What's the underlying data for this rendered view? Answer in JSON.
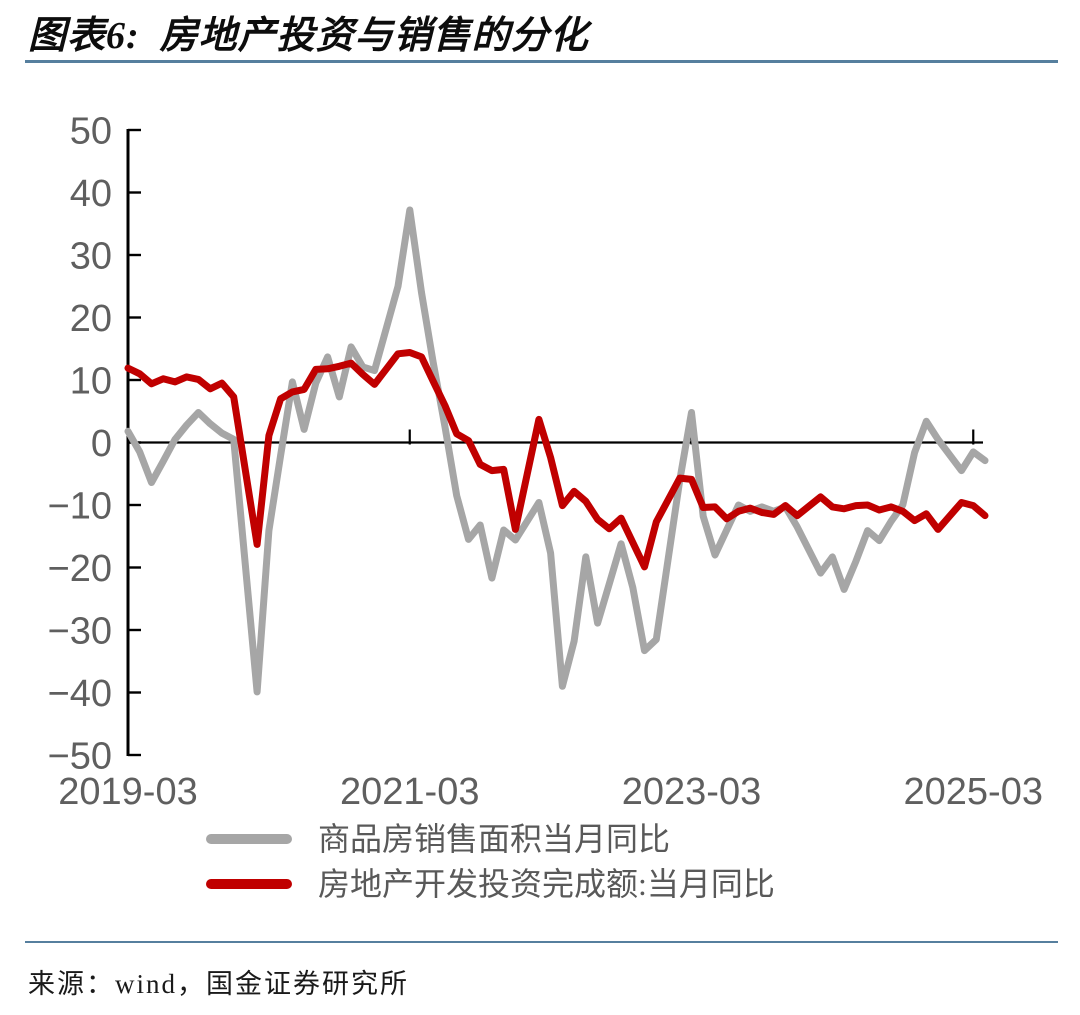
{
  "header": {
    "figure_tag": "图表6:",
    "title": "房地产投资与销售的分化"
  },
  "footer": {
    "source": "来源：wind，国金证券研究所"
  },
  "style": {
    "rule_color": "#567f9e",
    "axis_color": "#000000",
    "tick_label_color": "#5f5f5f",
    "legend_text_color": "#595959"
  },
  "chart_data": {
    "type": "line",
    "title": "房地产投资与销售的分化",
    "xlabel": "",
    "ylabel": "",
    "ylim": [
      -50,
      50
    ],
    "y_ticks": [
      50,
      40,
      30,
      20,
      10,
      0,
      -10,
      -20,
      -30,
      -40,
      -50
    ],
    "x_ticks": [
      "2019-03",
      "2021-03",
      "2023-03",
      "2025-03"
    ],
    "grid": false,
    "zero_axis_line": true,
    "legend_position": "bottom-left",
    "x": [
      "2019-03",
      "2019-04",
      "2019-05",
      "2019-06",
      "2019-07",
      "2019-08",
      "2019-09",
      "2019-10",
      "2019-11",
      "2019-12",
      "2020-02",
      "2020-03",
      "2020-04",
      "2020-05",
      "2020-06",
      "2020-07",
      "2020-08",
      "2020-09",
      "2020-10",
      "2020-11",
      "2020-12",
      "2021-02",
      "2021-03",
      "2021-04",
      "2021-05",
      "2021-06",
      "2021-07",
      "2021-08",
      "2021-09",
      "2021-10",
      "2021-11",
      "2021-12",
      "2022-02",
      "2022-03",
      "2022-04",
      "2022-05",
      "2022-06",
      "2022-07",
      "2022-08",
      "2022-09",
      "2022-10",
      "2022-11",
      "2022-12",
      "2023-02",
      "2023-03",
      "2023-04",
      "2023-05",
      "2023-06",
      "2023-07",
      "2023-08",
      "2023-09",
      "2023-10",
      "2023-11",
      "2023-12",
      "2024-02",
      "2024-03",
      "2024-04",
      "2024-05",
      "2024-06",
      "2024-07",
      "2024-08",
      "2024-09",
      "2024-10",
      "2024-11",
      "2024-12",
      "2025-02",
      "2025-03",
      "2025-04"
    ],
    "series": [
      {
        "name": "商品房销售面积当月同比",
        "color": "#a6a6a6",
        "values": [
          1.8,
          -1.5,
          -6.4,
          -3.0,
          0.5,
          2.8,
          4.8,
          3.0,
          1.5,
          0.5,
          -39.9,
          -14.1,
          -2.1,
          9.7,
          2.1,
          9.5,
          13.7,
          7.3,
          15.3,
          12.1,
          11.5,
          25.0,
          37.2,
          24.0,
          12.8,
          2.5,
          -8.5,
          -15.5,
          -13.2,
          -21.7,
          -14.0,
          -15.6,
          -9.6,
          -17.7,
          -39.0,
          -31.8,
          -18.3,
          -28.9,
          -22.6,
          -16.2,
          -23.2,
          -33.3,
          -31.5,
          -6.0,
          4.8,
          -11.8,
          -18.0,
          -14.0,
          -10.0,
          -11.0,
          -10.3,
          -11.0,
          -10.3,
          -13.5,
          -20.9,
          -18.3,
          -23.5,
          -19.0,
          -14.1,
          -15.7,
          -12.6,
          -10.0,
          -1.6,
          3.4,
          0.5,
          -4.5,
          -1.5,
          -2.9
        ]
      },
      {
        "name": "房地产开发投资完成额:当月同比",
        "color": "#c00000",
        "values": [
          11.9,
          11.0,
          9.4,
          10.2,
          9.7,
          10.5,
          10.1,
          8.6,
          9.5,
          7.3,
          -16.3,
          1.1,
          7.0,
          8.1,
          8.5,
          11.7,
          11.8,
          12.2,
          12.7,
          10.9,
          9.3,
          14.2,
          14.4,
          13.7,
          9.8,
          5.9,
          1.4,
          0.3,
          -3.5,
          -4.5,
          -4.3,
          -13.9,
          3.7,
          -2.4,
          -10.1,
          -7.8,
          -9.4,
          -12.3,
          -13.8,
          -12.1,
          -16.0,
          -19.9,
          -12.7,
          -5.7,
          -5.9,
          -10.4,
          -10.3,
          -12.2,
          -11.0,
          -10.5,
          -11.2,
          -11.5,
          -10.1,
          -11.7,
          -8.7,
          -10.3,
          -10.6,
          -10.1,
          -10.0,
          -10.8,
          -10.3,
          -11.0,
          -12.5,
          -11.4,
          -13.9,
          -9.6,
          -10.1,
          -11.7
        ]
      }
    ]
  }
}
